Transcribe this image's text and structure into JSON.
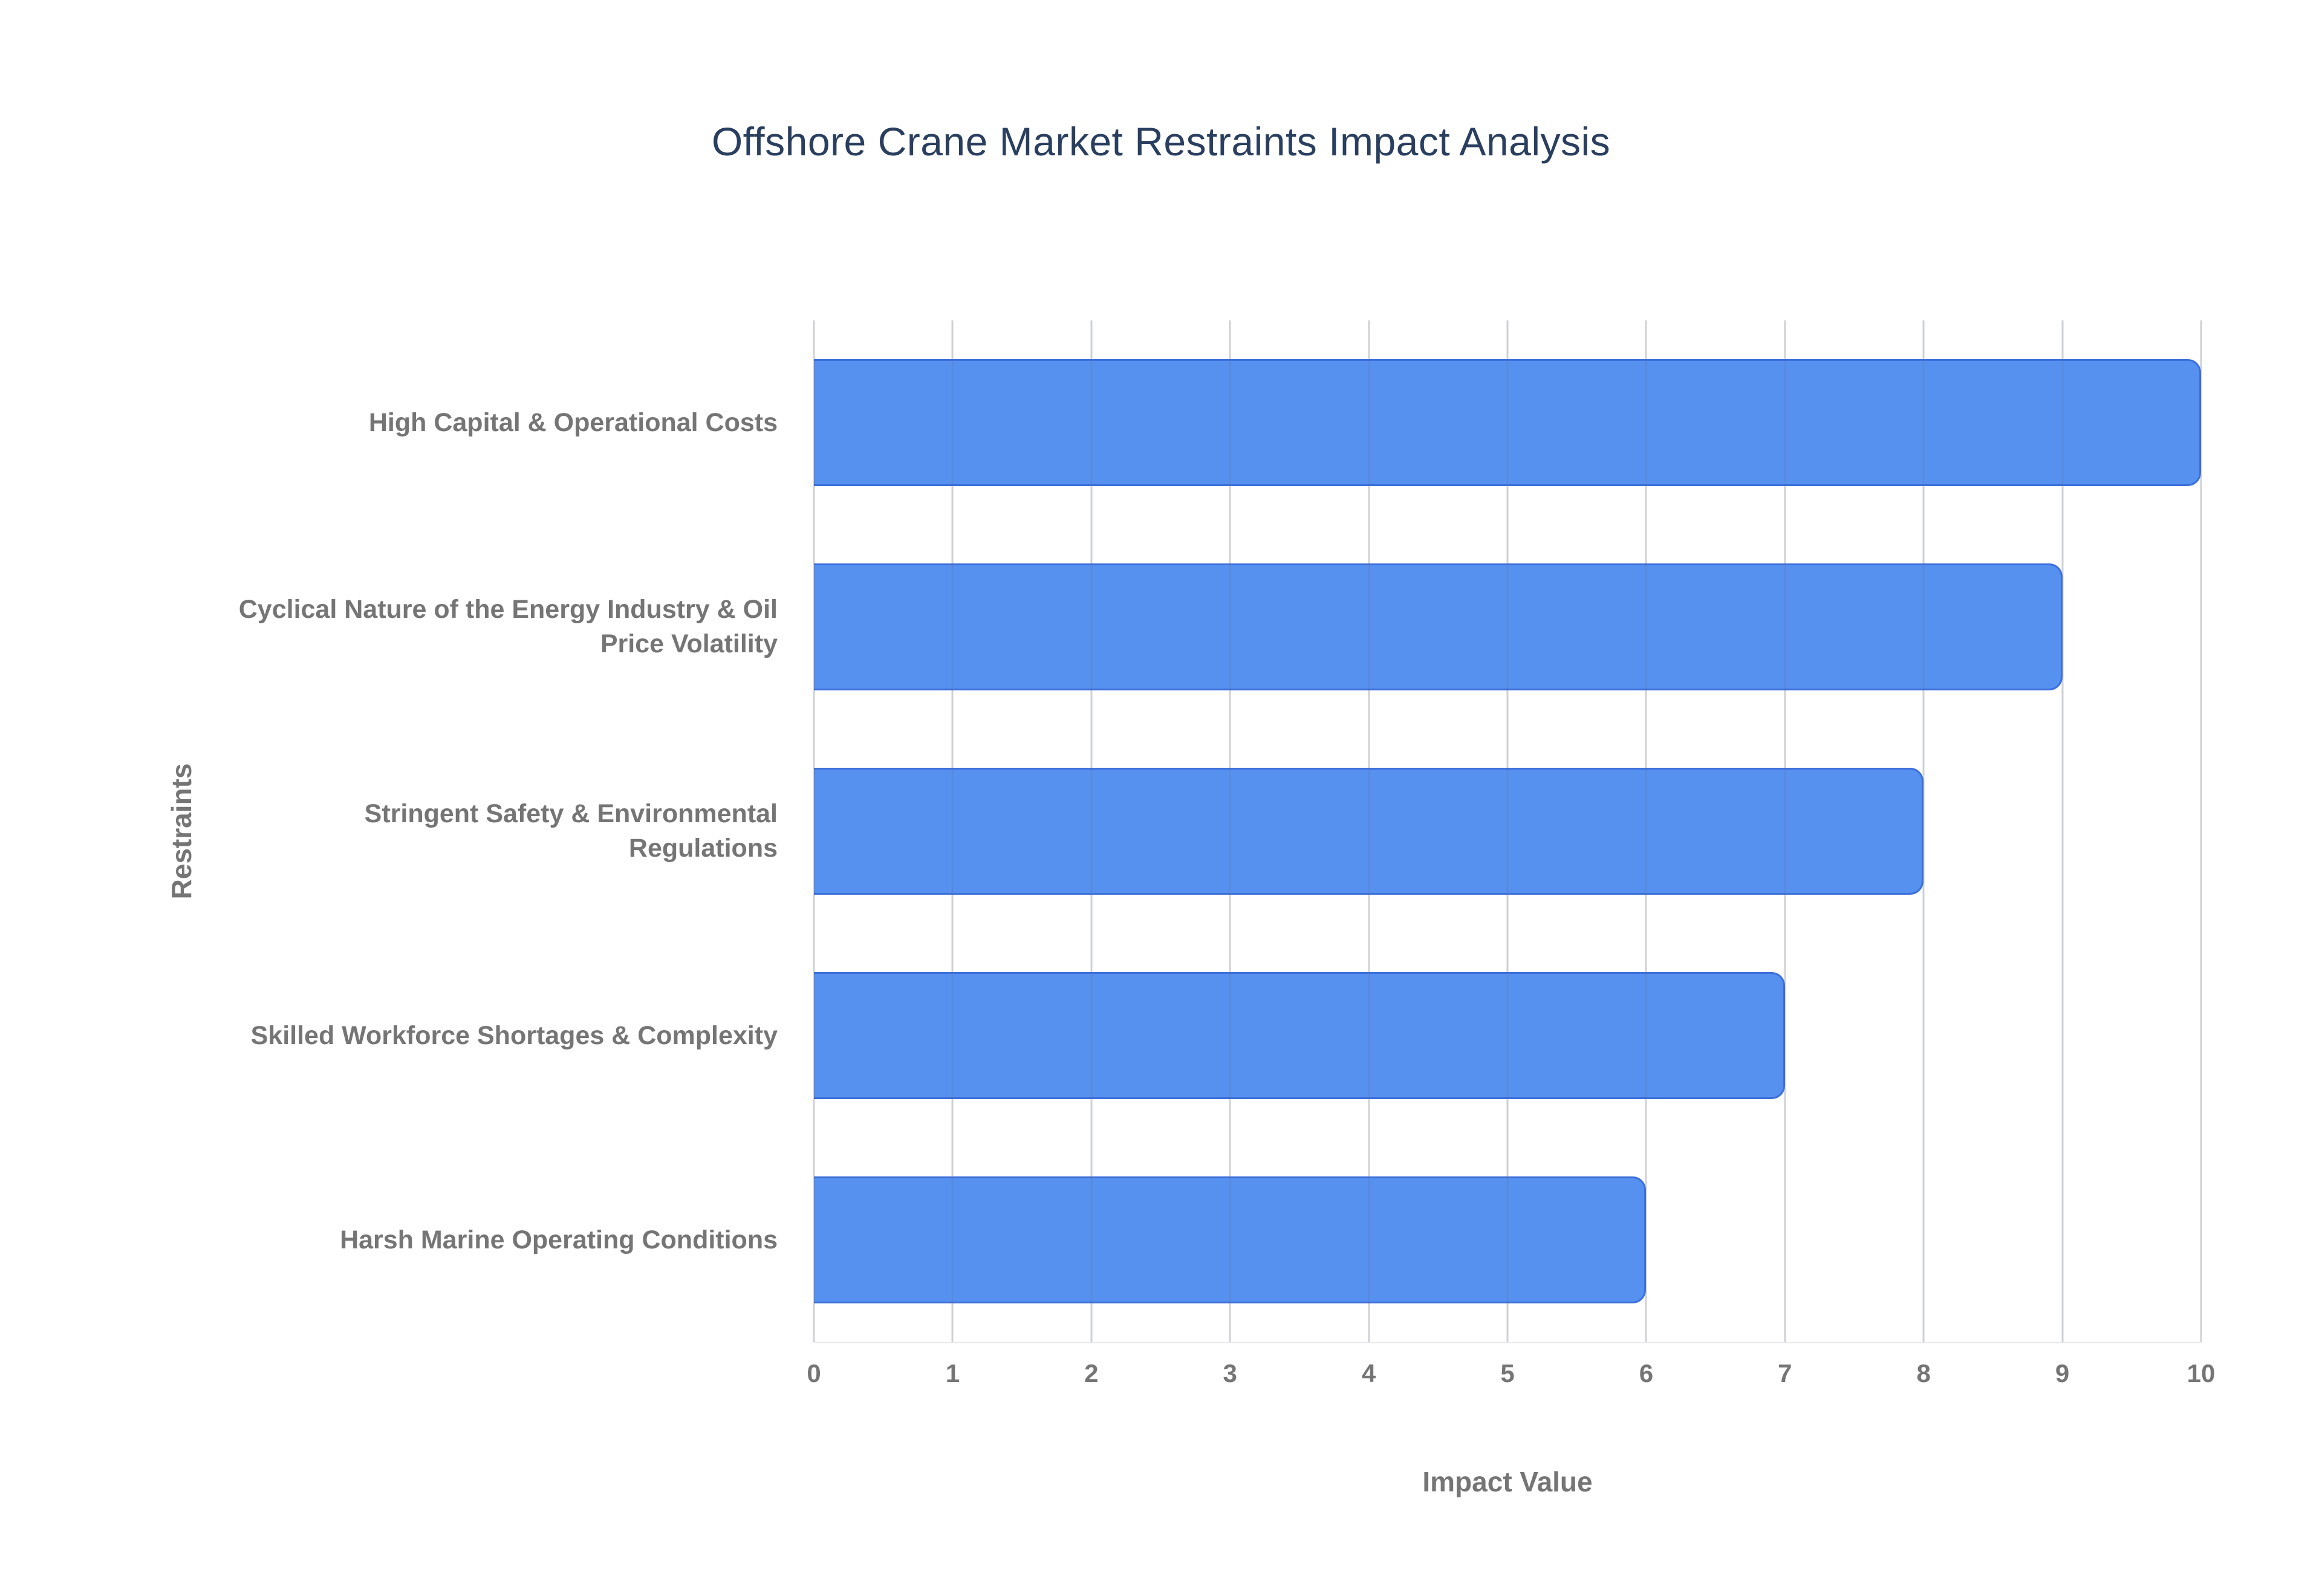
{
  "chart_data": {
    "type": "bar",
    "orientation": "horizontal",
    "title": "Offshore Crane Market Restraints Impact Analysis",
    "xlabel": "Impact Value",
    "ylabel": "Restraints",
    "categories": [
      "High Capital & Operational Costs",
      "Cyclical Nature of the Energy Industry & Oil Price Volatility",
      "Stringent Safety & Environmental Regulations",
      "Skilled Workforce Shortages & Complexity",
      "Harsh Marine Operating Conditions"
    ],
    "values": [
      10,
      9,
      8,
      7,
      6
    ],
    "xlim": [
      0,
      10
    ],
    "xticks": [
      0,
      1,
      2,
      3,
      4,
      5,
      6,
      7,
      8,
      9,
      10
    ],
    "grid": true,
    "legend": "none",
    "colors": {
      "bar_fill": "#5691f0",
      "bar_border": "#3d6fdb",
      "title_text": "#2a3f5f",
      "axis_text": "#757575",
      "gridline": "#e4e4e8",
      "background": "#ffffff"
    }
  }
}
